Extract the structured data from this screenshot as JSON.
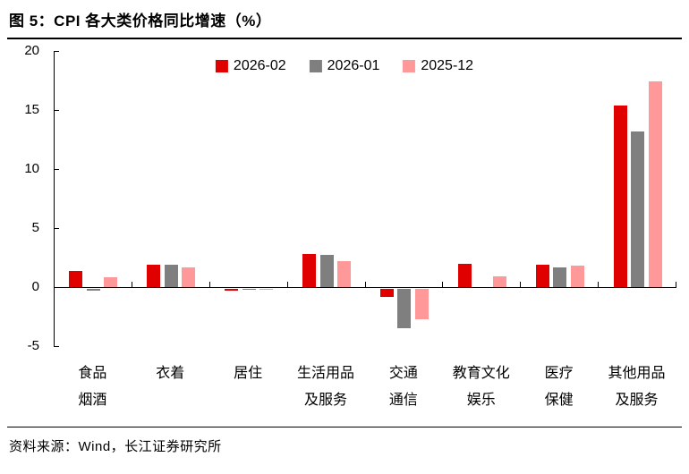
{
  "title": "图 5：CPI 各大类价格同比增速（%）",
  "source": "资料来源：Wind，长江证券研究所",
  "colors": {
    "series_red": "#e00000",
    "series_gray": "#7f7f7f",
    "series_pink": "#ff9999",
    "axis": "#000000"
  },
  "chart_data": {
    "type": "bar",
    "title": "CPI 各大类价格同比增速（%）",
    "categories": [
      "食品\n烟酒",
      "衣着",
      "居住",
      "生活用品\n及服务",
      "交通\n通信",
      "教育文化\n娱乐",
      "医疗\n保健",
      "其他用品\n及服务"
    ],
    "series": [
      {
        "name": "2026-02",
        "color": "#e00000",
        "values": [
          1.4,
          1.9,
          -0.2,
          2.8,
          -0.7,
          2.0,
          1.9,
          15.4
        ]
      },
      {
        "name": "2026-01",
        "color": "#7f7f7f",
        "values": [
          -0.2,
          1.9,
          -0.15,
          2.7,
          -3.4,
          0.0,
          1.7,
          13.2
        ]
      },
      {
        "name": "2025-12",
        "color": "#ff9999",
        "values": [
          0.8,
          1.7,
          -0.15,
          2.2,
          -2.6,
          0.9,
          1.8,
          17.4
        ]
      }
    ],
    "xlabel": "",
    "ylabel": "",
    "ylim": [
      -5,
      20
    ],
    "yticks": [
      20,
      15,
      10,
      5,
      0,
      -5
    ],
    "legend_position": "top-center",
    "grid": false
  }
}
